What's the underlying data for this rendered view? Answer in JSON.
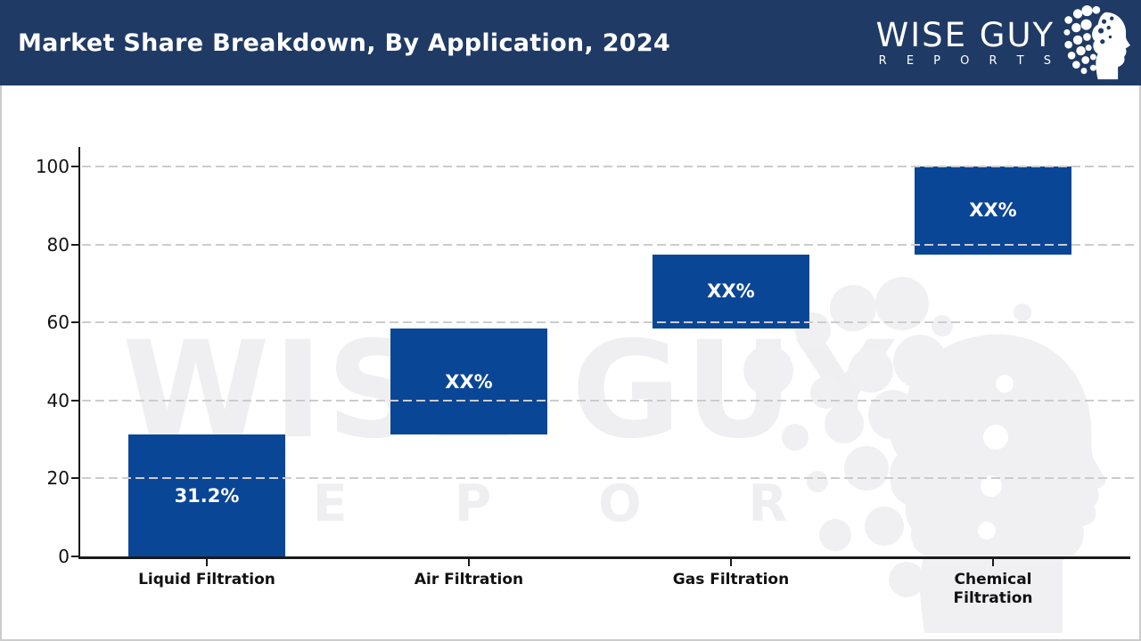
{
  "header": {
    "title": "Market Share Breakdown, By Application, 2024",
    "logo": {
      "word": "WISE GUY",
      "sub": "R E P O R T S"
    }
  },
  "watermark": {
    "word": "WISE GUY",
    "sub": "R E P O R T S"
  },
  "chart_data": {
    "type": "bar",
    "subtype": "waterfall",
    "title": "Market Share Breakdown, By Application, 2024",
    "categories": [
      "Liquid Filtration",
      "Air Filtration",
      "Gas Filtration",
      "Chemical\nFiltration"
    ],
    "series": [
      {
        "name": "Market share (%)",
        "segments": [
          {
            "category": "Liquid Filtration",
            "start": 0,
            "end": 31.2,
            "label": "31.2%"
          },
          {
            "category": "Air Filtration",
            "start": 31.2,
            "end": 58.5,
            "label": "XX%"
          },
          {
            "category": "Gas Filtration",
            "start": 58.5,
            "end": 77.5,
            "label": "XX%"
          },
          {
            "category": "Chemical Filtration",
            "start": 77.5,
            "end": 100,
            "label": "XX%"
          }
        ]
      }
    ],
    "ylim": [
      0,
      100
    ],
    "yticks": [
      0,
      20,
      40,
      60,
      80,
      100
    ],
    "grid": "horizontal-dashed",
    "legend": "none",
    "bar_color": "#0a4696",
    "bar_label_color": "#ffffff"
  },
  "colors": {
    "header_bg": "#1f3a64",
    "bar": "#0a4696",
    "grid": "#cccccc",
    "axis": "#1a1a1a",
    "watermark": "#efeff1",
    "frame": "#cbcbcb"
  }
}
